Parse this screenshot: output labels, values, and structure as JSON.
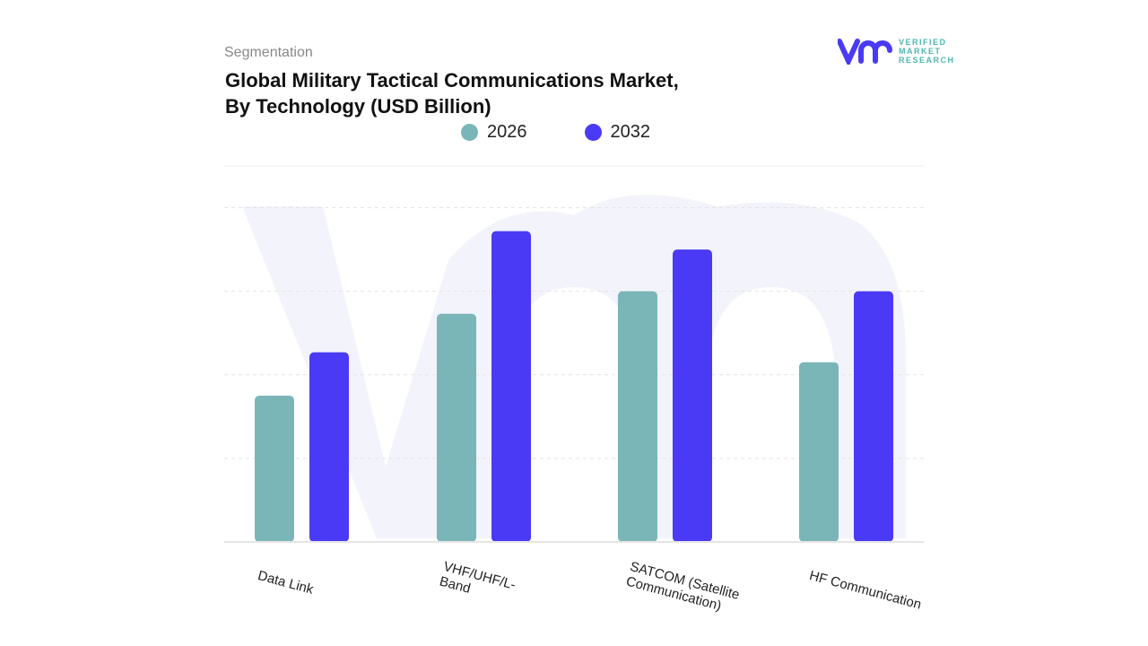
{
  "header": {
    "segment": "Segmentation",
    "title_line1": "Global Military Tactical Communications Market,",
    "title_line2": "By Technology (USD Billion)"
  },
  "logo": {
    "line1": "VERIFIED",
    "line2": "MARKET",
    "line3": "RESEARCH"
  },
  "chart_data": {
    "type": "bar",
    "title": "Global Military Tactical Communications Market, By Technology (USD Billion)",
    "categories": [
      "Data Link",
      "VHF/UHF/L-Band",
      "SATCOM (Satellite Communication)",
      "HF Communication"
    ],
    "series": [
      {
        "name": "2026",
        "color": "#7ab5b8",
        "values": [
          1.75,
          2.73,
          3.0,
          2.15
        ]
      },
      {
        "name": "2032",
        "color": "#4a3af5",
        "values": [
          2.27,
          3.72,
          3.5,
          3.0
        ]
      }
    ],
    "ylim": [
      0,
      4.5
    ],
    "grid": true,
    "legend": "top",
    "xlabel": "",
    "ylabel": ""
  }
}
